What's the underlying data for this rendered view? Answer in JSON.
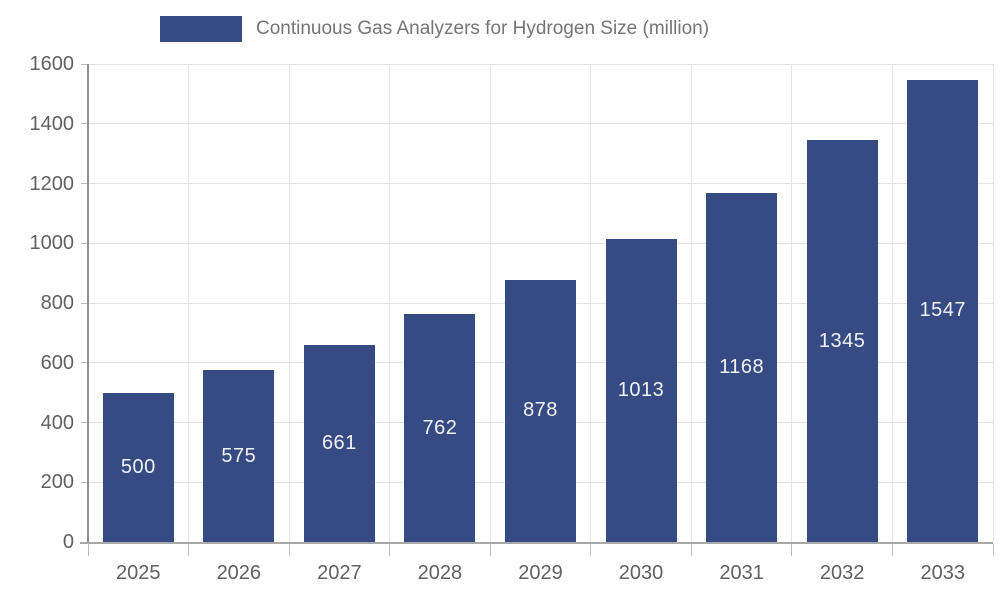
{
  "legend": {
    "label": "Continuous Gas Analyzers for Hydrogen Size (million)"
  },
  "chart_data": {
    "type": "bar",
    "title": "Continuous Gas Analyzers for Hydrogen Size (million)",
    "categories": [
      "2025",
      "2026",
      "2027",
      "2028",
      "2029",
      "2030",
      "2031",
      "2032",
      "2033"
    ],
    "values": [
      500,
      575,
      661,
      762,
      878,
      1013,
      1168,
      1345,
      1547
    ],
    "xlabel": "",
    "ylabel": "",
    "ylim": [
      0,
      1600
    ],
    "yticks": [
      0,
      200,
      400,
      600,
      800,
      1000,
      1200,
      1400,
      1600
    ],
    "grid": true,
    "legend_position": "top",
    "bar_color": "#364a84",
    "value_label_color": "#f2f2f2",
    "tick_label_color": "#616161",
    "title_color": "#757575",
    "grid_color": "#e2e2e2"
  }
}
